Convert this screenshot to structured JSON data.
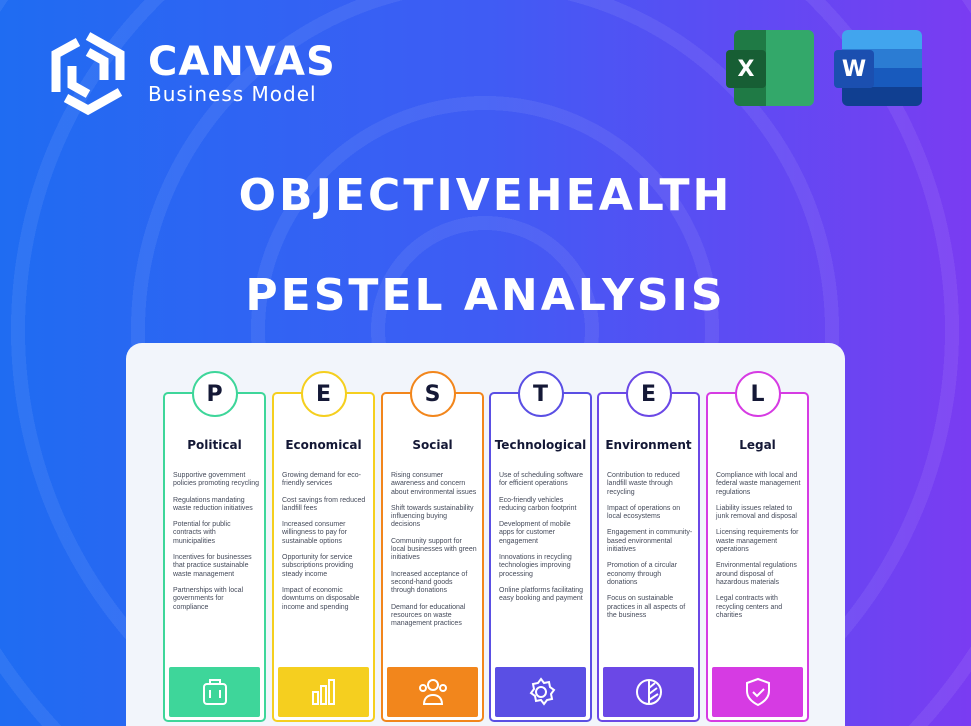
{
  "brand": {
    "name": "CANVAS",
    "subtitle": "Business Model"
  },
  "apps": [
    {
      "name": "excel-icon",
      "letter": "X",
      "color": "#1f7a45"
    },
    {
      "name": "word-icon",
      "letter": "W",
      "color": "#2b5fc4"
    }
  ],
  "title": {
    "line1": "OBJECTIVEHEALTH",
    "line2": "PESTEL ANALYSIS"
  },
  "columns": [
    {
      "letter": "P",
      "label": "Political",
      "color": "#3ed69a",
      "icon": "briefcase-icon",
      "items": [
        "Supportive government policies promoting recycling",
        "Regulations mandating waste reduction initiatives",
        "Potential for public contracts with municipalities",
        "Incentives for businesses that practice sustainable waste management",
        "Partnerships with local governments for compliance"
      ]
    },
    {
      "letter": "E",
      "label": "Economical",
      "color": "#f5cf1f",
      "icon": "bar-chart-icon",
      "items": [
        "Growing demand for eco-friendly services",
        "Cost savings from reduced landfill fees",
        "Increased consumer willingness to pay for sustainable options",
        "Opportunity for service subscriptions providing steady income",
        "Impact of economic downturns on disposable income and spending"
      ]
    },
    {
      "letter": "S",
      "label": "Social",
      "color": "#f2861c",
      "icon": "people-icon",
      "items": [
        "Rising consumer awareness and concern about environmental issues",
        "Shift towards sustainability influencing buying decisions",
        "Community support for local businesses with green initiatives",
        "Increased acceptance of second-hand goods through donations",
        "Demand for educational resources on waste management practices"
      ]
    },
    {
      "letter": "T",
      "label": "Technological",
      "color": "#5a4fe4",
      "icon": "gear-icon",
      "items": [
        "Use of scheduling software for efficient operations",
        "Eco-friendly vehicles reducing carbon footprint",
        "Development of mobile apps for customer engagement",
        "Innovations in recycling technologies improving processing",
        "Online platforms facilitating easy booking and payment"
      ]
    },
    {
      "letter": "E",
      "label": "Environment",
      "color": "#6b48e6",
      "icon": "leaf-icon",
      "items": [
        "Contribution to reduced landfill waste through recycling",
        "Impact of operations on local ecosystems",
        "Engagement in community-based environmental initiatives",
        "Promotion of a circular economy through donations",
        "Focus on sustainable practices in all aspects of the business"
      ]
    },
    {
      "letter": "L",
      "label": "Legal",
      "color": "#d63be3",
      "icon": "shield-check-icon",
      "items": [
        "Compliance with local and federal waste management regulations",
        "Liability issues related to junk removal and disposal",
        "Licensing requirements for waste management operations",
        "Environmental regulations around disposal of hazardous materials",
        "Legal contracts with recycling centers and charities"
      ]
    }
  ]
}
